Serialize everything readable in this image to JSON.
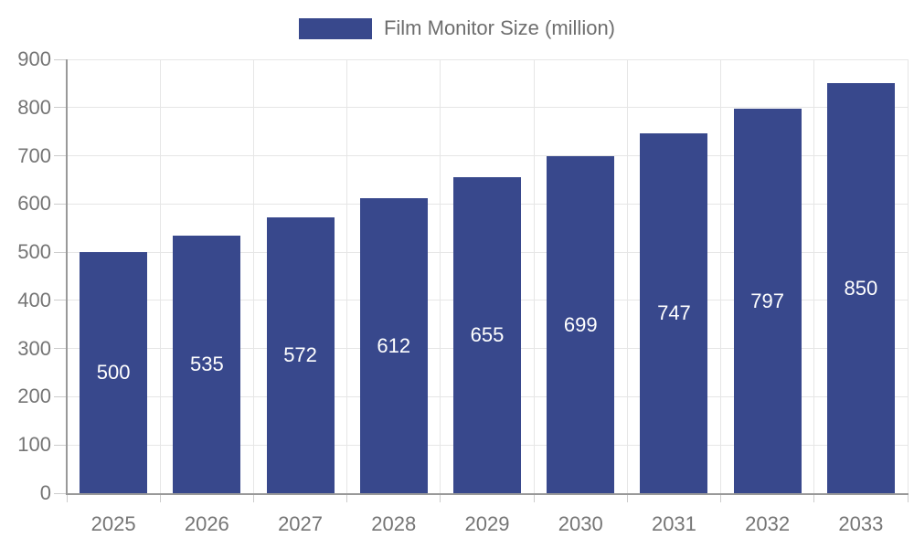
{
  "legend": {
    "label": "Film Monitor Size (million)"
  },
  "chart_data": {
    "type": "bar",
    "title": "",
    "legend_label": "Film Monitor Size (million)",
    "legend_position": "top",
    "categories": [
      "2025",
      "2026",
      "2027",
      "2028",
      "2029",
      "2030",
      "2031",
      "2032",
      "2033"
    ],
    "values": [
      500,
      535,
      572,
      612,
      655,
      699,
      747,
      797,
      850
    ],
    "xlabel": "",
    "ylabel": "",
    "ylim": [
      0,
      900
    ],
    "y_ticks": [
      0,
      100,
      200,
      300,
      400,
      500,
      600,
      700,
      800,
      900
    ],
    "grid": true,
    "colors": {
      "bar": "#38488C",
      "bar_label": "#ffffff",
      "axis_text": "#757575",
      "axis_line": "#999999",
      "gridline": "#e6e6e6",
      "tick": "#cccccc",
      "legend_text": "#6e6e6e",
      "background": "#ffffff"
    }
  }
}
